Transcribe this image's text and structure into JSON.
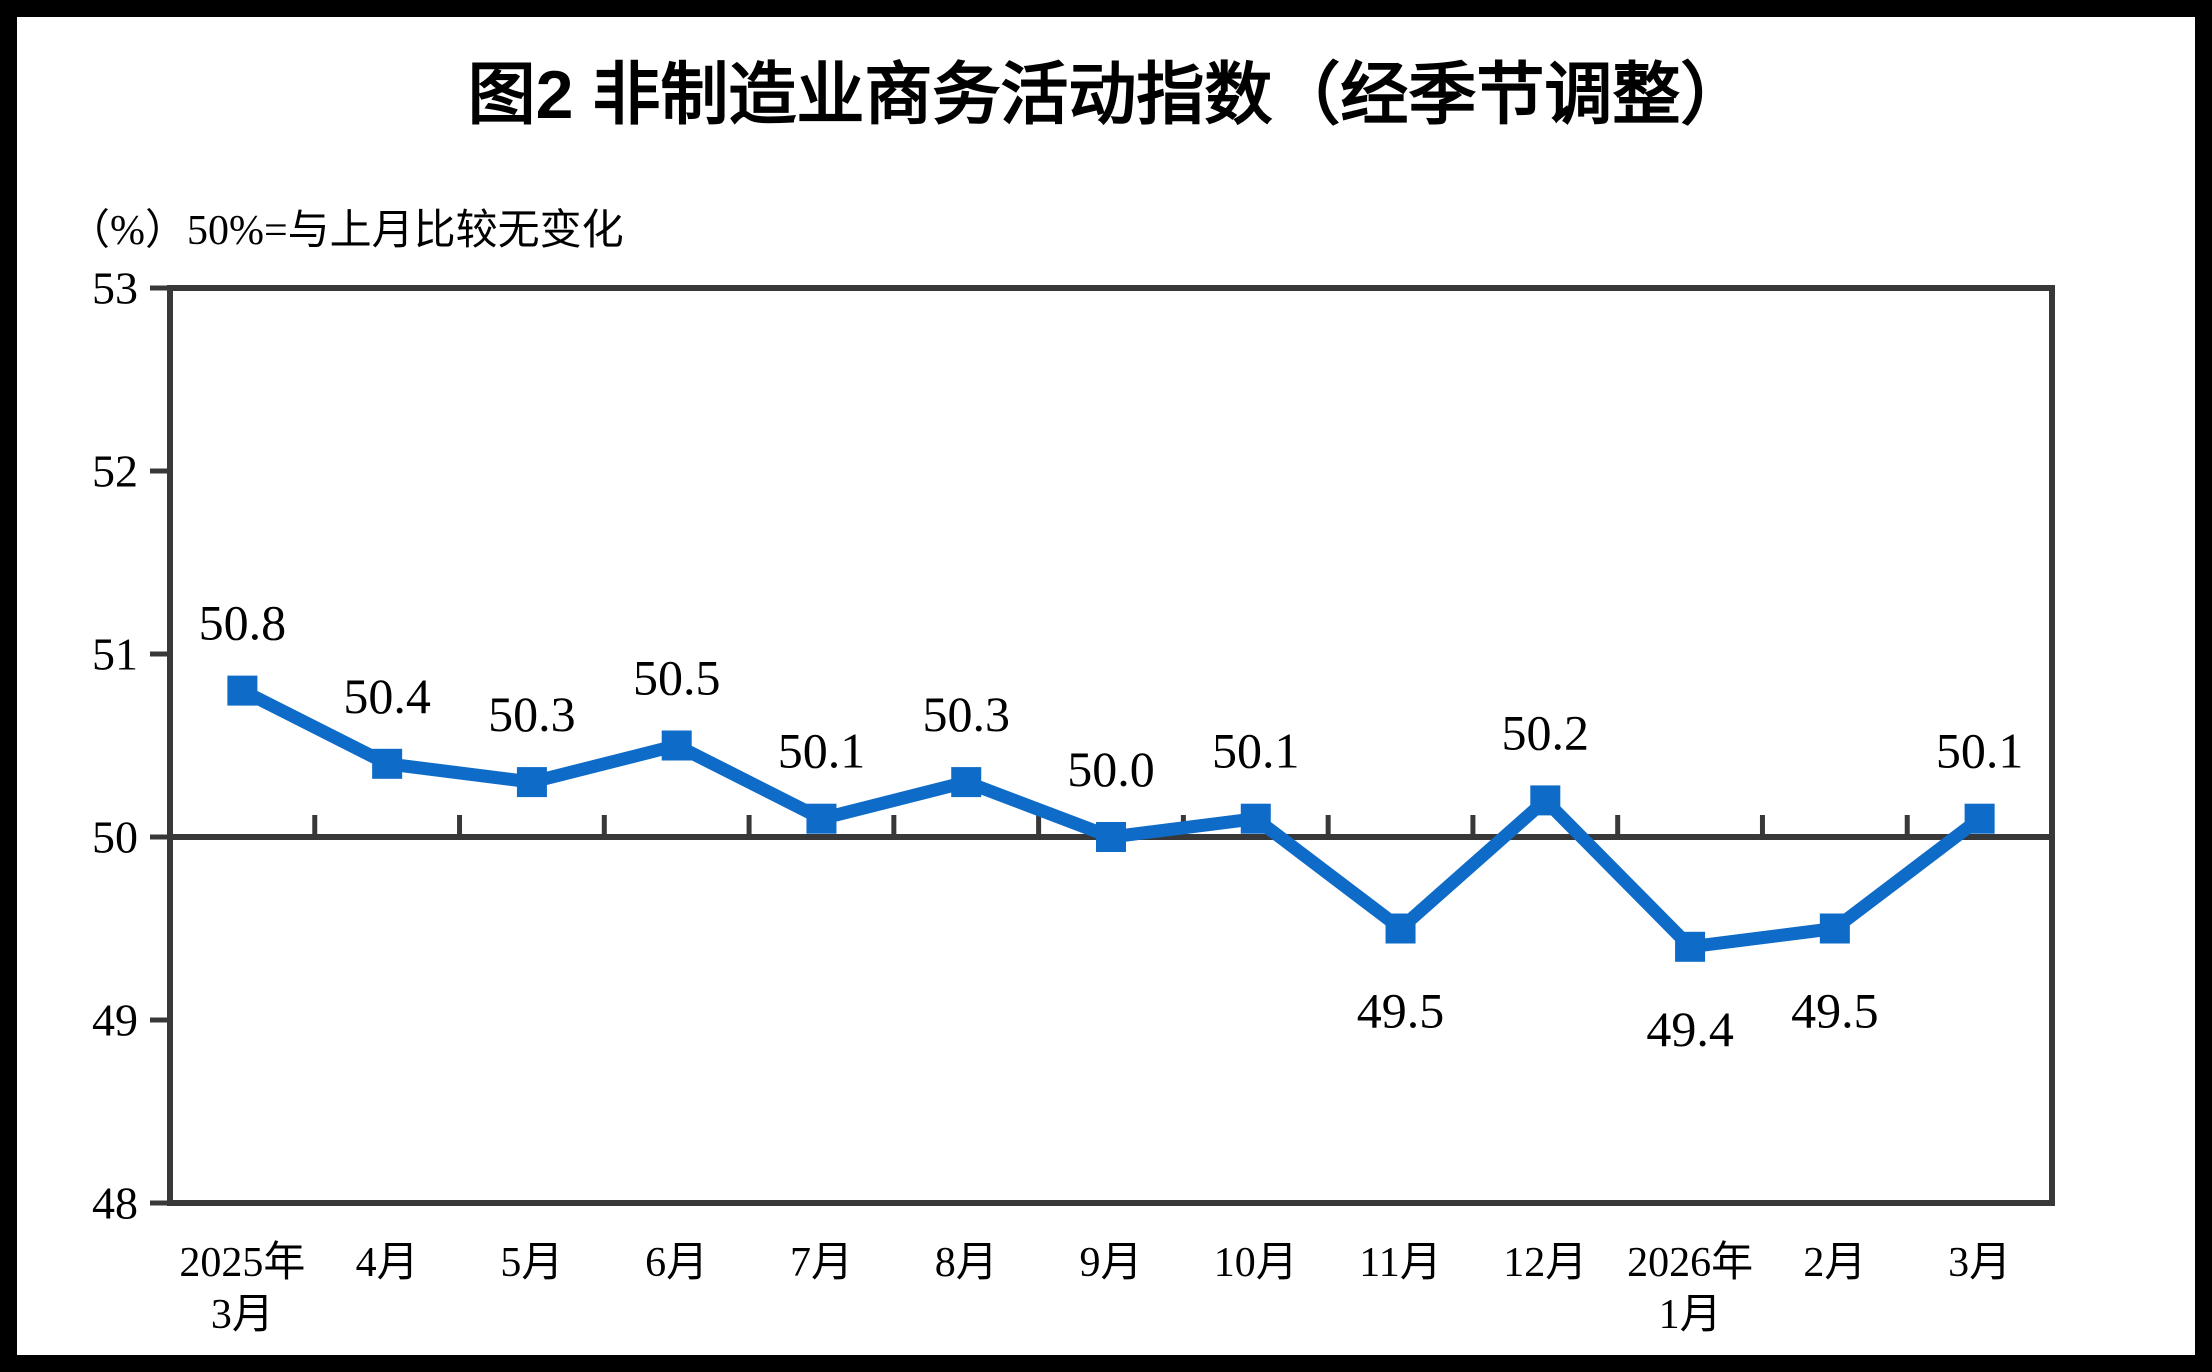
{
  "title": "图2 非制造业商务活动指数（经季节调整）",
  "axis_note": "（%）50%=与上月比较无变化",
  "colors": {
    "line": "#0E6BC8",
    "axis": "#383838",
    "text": "#000000",
    "frame": "#000000",
    "background": "#FFFFFF"
  },
  "chart_data": {
    "type": "line",
    "title": "图2 非制造业商务活动指数（经季节调整）",
    "ylabel_note": "（%）50%=与上月比较无变化",
    "categories": [
      "2025年\n3月",
      "4月",
      "5月",
      "6月",
      "7月",
      "8月",
      "9月",
      "10月",
      "11月",
      "12月",
      "2026年\n1月",
      "2月",
      "3月"
    ],
    "values": [
      50.8,
      50.4,
      50.3,
      50.5,
      50.1,
      50.3,
      50.0,
      50.1,
      49.5,
      50.2,
      49.4,
      49.5,
      50.1
    ],
    "data_labels": [
      "50.8",
      "50.4",
      "50.3",
      "50.5",
      "50.1",
      "50.3",
      "50.0",
      "50.1",
      "49.5",
      "50.2",
      "49.4",
      "49.5",
      "50.1"
    ],
    "ylim": [
      48,
      53
    ],
    "yticks": [
      53,
      52,
      51,
      50,
      49,
      48
    ],
    "baseline": 50,
    "grid": false,
    "legend": "none",
    "marker": "square",
    "label_position_rule": "above if value >= 50 else below"
  }
}
